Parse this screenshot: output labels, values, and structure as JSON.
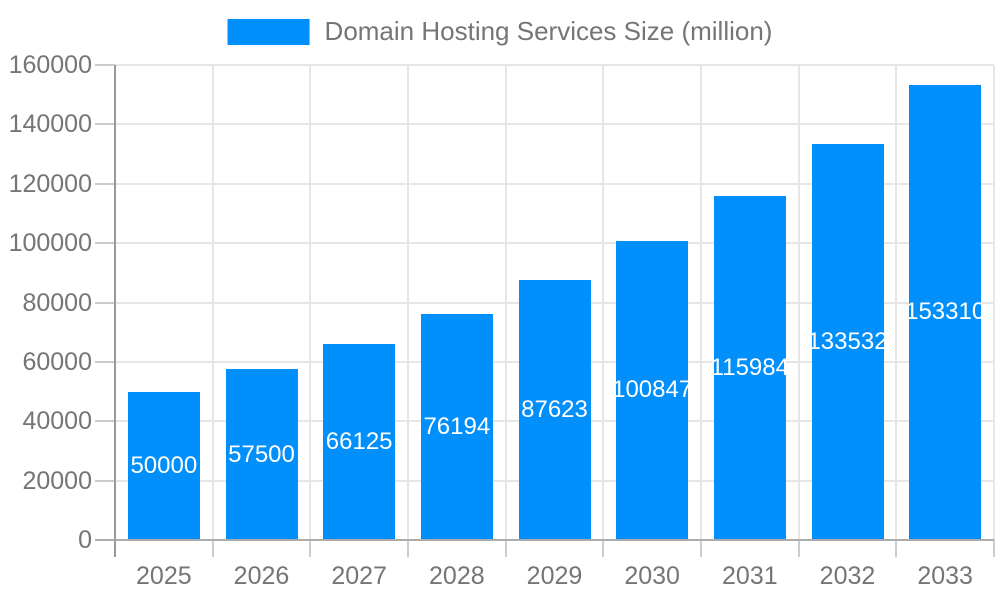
{
  "legend": {
    "label": "Domain Hosting Services Size (million)"
  },
  "chart_data": {
    "type": "bar",
    "title": "Domain Hosting Services Size (million)",
    "categories": [
      "2025",
      "2026",
      "2027",
      "2028",
      "2029",
      "2030",
      "2031",
      "2032",
      "2033"
    ],
    "values": [
      50000,
      57500,
      66125,
      76194,
      87623,
      100847,
      115984,
      133532,
      153310
    ],
    "value_labels": [
      "50000",
      "57500",
      "66125",
      "76194",
      "87623",
      "100847",
      "115984",
      "133532",
      "153310"
    ],
    "xlabel": "",
    "ylabel": "",
    "ylim": [
      0,
      160000
    ],
    "ytick_step": 20000,
    "ytick_labels": [
      "0",
      "20000",
      "40000",
      "60000",
      "80000",
      "100000",
      "120000",
      "140000",
      "160000"
    ],
    "grid": true,
    "legend_position": "top-center",
    "value_label_position": "inside-center",
    "value_label_color": "#ffffff"
  },
  "colors": {
    "bar": "#008FFB",
    "grid": "#e6e6e6",
    "y_axis": "#999999",
    "x_axis": "#ababab",
    "tick": "#cccccc",
    "label": "#757575"
  }
}
